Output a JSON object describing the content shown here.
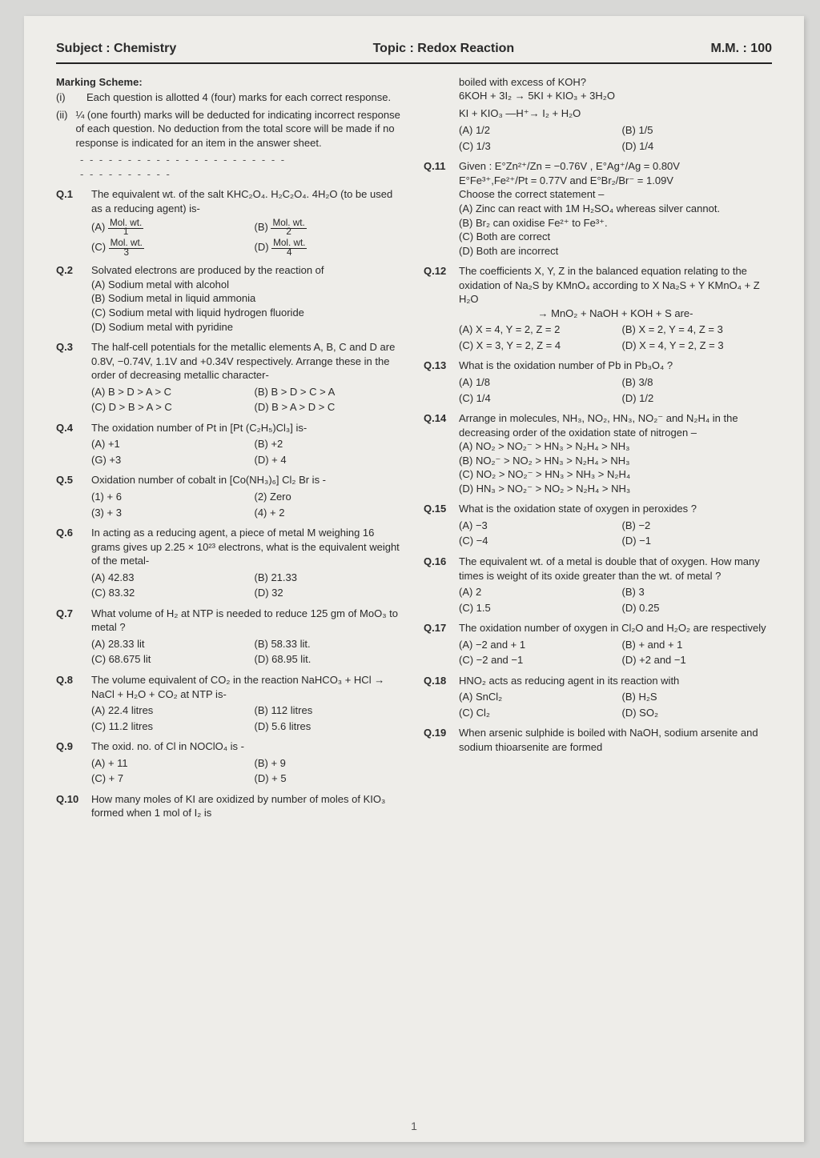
{
  "header": {
    "subject": "Subject : Chemistry",
    "topic": "Topic : Redox Reaction",
    "mm": "M.M. : 100"
  },
  "scheme": {
    "title": "Marking Scheme:",
    "i": "Each question is allotted 4 (four) marks for each correct response.",
    "ii": "¼ (one fourth) marks will be deducted for indicating incorrect response of each question. No deduction from the total score will be made if no response is indicated for an item in the answer sheet."
  },
  "q1": {
    "text": "The equivalent wt. of the salt KHC₂O₄. H₂C₂O₄. 4H₂O (to be used as a reducing agent) is-",
    "a": "Mol. wt.",
    "ad": "1",
    "b": "Mol. wt.",
    "bd": "2",
    "c": "Mol. wt.",
    "cd": "3",
    "d": "Mol. wt.",
    "dd": "4"
  },
  "q2": {
    "text": "Solvated electrons are produced by the reaction of",
    "a": "(A) Sodium metal with alcohol",
    "b": "(B) Sodium metal in liquid ammonia",
    "c": "(C) Sodium metal with liquid hydrogen fluoride",
    "d": "(D) Sodium metal with pyridine"
  },
  "q3": {
    "text": "The half-cell potentials for the metallic elements A, B, C and D are 0.8V, −0.74V, 1.1V and +0.34V respectively. Arrange these in the order of decreasing metallic character-",
    "a": "(A) B > D > A > C",
    "b": "(B) B > D > C > A",
    "c": "(C) D > B > A > C",
    "d": "(D) B > A > D > C"
  },
  "q4": {
    "text": "The oxidation number of Pt in [Pt (C₂H₅)Cl₃] is-",
    "a": "(A) +1",
    "b": "(B) +2",
    "c": "(G) +3",
    "d": "(D) + 4"
  },
  "q5": {
    "text": "Oxidation number of cobalt in [Co(NH₃)₆] Cl₂ Br is -",
    "a": "(1) + 6",
    "b": "(2) Zero",
    "c": "(3) + 3",
    "d": "(4) + 2"
  },
  "q6": {
    "text": "In acting as a reducing agent, a piece of metal M weighing 16 grams gives up 2.25 × 10²³ electrons, what is the equivalent weight of the metal-",
    "a": "(A) 42.83",
    "b": "(B) 21.33",
    "c": "(C) 83.32",
    "d": "(D) 32"
  },
  "q7": {
    "text": "What volume of H₂ at NTP is needed to reduce 125 gm of MoO₃ to metal ?",
    "a": "(A) 28.33 lit",
    "b": "(B) 58.33 lit.",
    "c": "(C) 68.675 lit",
    "d": "(D) 68.95 lit."
  },
  "q8": {
    "text": "The volume equivalent of CO₂ in the reaction NaHCO₃ + HCl → NaCl + H₂O + CO₂ at NTP is-",
    "a": "(A) 22.4 litres",
    "b": "(B) 112 litres",
    "c": "(C) 11.2 litres",
    "d": "(D) 5.6 litres"
  },
  "q9": {
    "text": "The oxid. no. of Cl in NOClO₄ is -",
    "a": "(A) + 11",
    "b": "(B) + 9",
    "c": "(C) + 7",
    "d": "(D) + 5"
  },
  "q10": {
    "text": "How many moles of KI are oxidized by number of moles of KIO₃ formed when 1 mol of I₂ is"
  },
  "q10b": {
    "pre": "boiled with excess of KOH?",
    "eq1": "6KOH + 3I₂ → 5KI + KIO₃ + 3H₂O",
    "eq2": "KI + KIO₃ —H⁺→ I₂ + H₂O",
    "a": "(A) 1/2",
    "b": "(B) 1/5",
    "c": "(C) 1/3",
    "d": "(D) 1/4"
  },
  "q11": {
    "text1": "Given : E°Zn²⁺/Zn = −0.76V , E°Ag⁺/Ag = 0.80V",
    "text2": "E°Fe³⁺,Fe²⁺/Pt = 0.77V  and  E°Br₂/Br⁻ = 1.09V",
    "text3": "Choose the correct statement –",
    "a": "(A) Zinc can react with 1M H₂SO₄ whereas silver cannot.",
    "b": "(B) Br₂ can oxidise Fe²⁺ to Fe³⁺.",
    "c": "(C) Both are correct",
    "d": "(D) Both are incorrect"
  },
  "q12": {
    "text": "The coefficients X, Y, Z in the balanced equation relating to the oxidation of Na₂S by KMnO₄ according to X Na₂S + Y KMnO₄ + Z H₂O",
    "sub": "→ MnO₂ + NaOH + KOH + S are-",
    "a": "(A) X = 4, Y = 2, Z = 2",
    "b": "(B) X = 2, Y = 4, Z = 3",
    "c": "(C) X = 3, Y = 2, Z = 4",
    "d": "(D) X = 4, Y = 2, Z = 3"
  },
  "q13": {
    "text": "What is the oxidation number of Pb in Pb₃O₄ ?",
    "a": "(A) 1/8",
    "b": "(B) 3/8",
    "c": "(C) 1/4",
    "d": "(D) 1/2"
  },
  "q14": {
    "text": "Arrange in molecules, NH₃, NO₂, HN₃, NO₂⁻ and N₂H₄ in the decreasing order of the oxidation state of nitrogen –",
    "a": "(A) NO₂ > NO₂⁻ > HN₃ > N₂H₄ > NH₃",
    "b": "(B) NO₂⁻ > NO₂ > HN₃ > N₂H₄ > NH₃",
    "c": "(C) NO₂ > NO₂⁻ > HN₃ > NH₃ > N₂H₄",
    "d": "(D) HN₃ > NO₂⁻ > NO₂ > N₂H₄ > NH₃"
  },
  "q15": {
    "text": "What is the oxidation state of oxygen in peroxides ?",
    "a": "(A) −3",
    "b": "(B) −2",
    "c": "(C) −4",
    "d": "(D) −1"
  },
  "q16": {
    "text": "The equivalent wt. of a metal is double that of oxygen. How many times is weight of its oxide greater than the wt. of metal ?",
    "a": "(A) 2",
    "b": "(B) 3",
    "c": "(C) 1.5",
    "d": "(D) 0.25"
  },
  "q17": {
    "text": "The oxidation number of oxygen in Cl₂O and H₂O₂ are respectively",
    "a": "(A) −2 and + 1",
    "b": "(B) + and + 1",
    "c": "(C) −2 and −1",
    "d": "(D) +2 and −1"
  },
  "q18": {
    "text": "HNO₂ acts as reducing agent in its reaction with",
    "a": "(A) SnCl₂",
    "b": "(B) H₂S",
    "c": "(C) Cl₂",
    "d": "(D) SO₂"
  },
  "q19": {
    "text": "When arsenic sulphide is boiled with NaOH, sodium arsenite and sodium thioarsenite are formed"
  },
  "pagenum": "1"
}
